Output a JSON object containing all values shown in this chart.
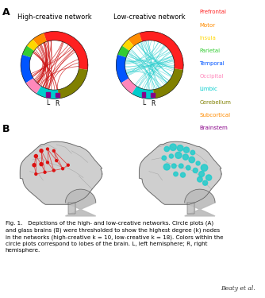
{
  "high_creative_label": "High-creative network",
  "low_creative_label": "Low-creative network",
  "legend_labels": [
    "Prefrontal",
    "Motor",
    "Insula",
    "Parietal",
    "Temporal",
    "Occipital",
    "Limbic",
    "Cerebellum",
    "Subcortical",
    "Brainstem"
  ],
  "legend_colors": [
    "#FF2020",
    "#FF8C00",
    "#FFD700",
    "#33CC33",
    "#0055FF",
    "#FF88BB",
    "#00CCCC",
    "#808000",
    "#FF8C00",
    "#880088"
  ],
  "ring_segments": [
    [
      "#FF2020",
      352,
      435
    ],
    [
      "#FF8C00",
      435,
      452
    ],
    [
      "#880088",
      452,
      460
    ],
    [
      "#880088",
      460,
      468
    ],
    [
      "#FF2020",
      72,
      108
    ],
    [
      "#FF8C00",
      108,
      130
    ],
    [
      "#FFD700",
      130,
      145
    ],
    [
      "#33CC33",
      145,
      162
    ],
    [
      "#0055FF",
      162,
      212
    ],
    [
      "#FF88BB",
      212,
      238
    ],
    [
      "#00CCCC",
      238,
      278
    ],
    [
      "#808000",
      278,
      352
    ]
  ],
  "high_creative_color": "#CC1111",
  "low_creative_color": "#22CCCC",
  "label_A": "A",
  "label_B": "B",
  "caption": "Fig. 1.   Depictions of the high- and low-creative networks. Circle plots (A)\nand glass brains (B) were thresholded to show the highest degree (k) nodes\nin the networks (high-creative k = 10, low-creative k = 18). Colors within the\ncircle plots correspond to lobes of the brain. L, left hemisphere; R, right\nhemisphere.",
  "attribution": "Beaty et al.",
  "bg_color": "#FFFFFF",
  "r_inner": 0.72,
  "r_outer": 0.98
}
